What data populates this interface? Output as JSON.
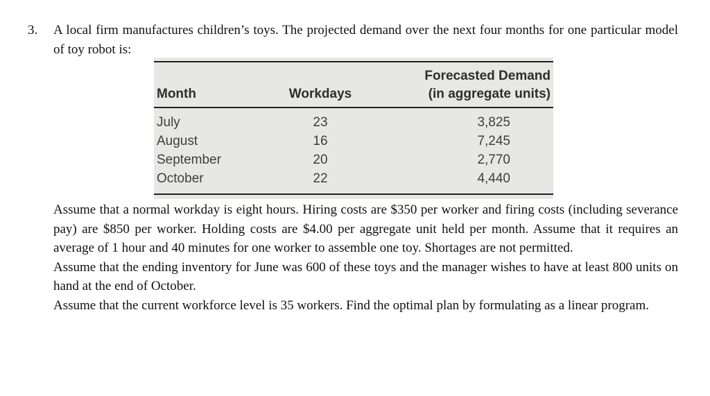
{
  "problem": {
    "number": "3.",
    "statement": "A local firm manufactures children’s toys. The projected demand over the next four months for one particular model of toy robot is:"
  },
  "table": {
    "header": {
      "month": "Month",
      "workdays": "Workdays",
      "demand_line1": "Forecasted Demand",
      "demand_line2": "(in aggregate units)"
    },
    "rows": [
      {
        "month": "July",
        "workdays": "23",
        "demand": "3,825"
      },
      {
        "month": "August",
        "workdays": "16",
        "demand": "7,245"
      },
      {
        "month": "September",
        "workdays": "20",
        "demand": "2,770"
      },
      {
        "month": "October",
        "workdays": "22",
        "demand": "4,440"
      }
    ],
    "colors": {
      "background": "#e7e7e5",
      "rule": "#1f1f1f",
      "header_text": "#2e2e2e",
      "body_text": "#3e3e3e"
    }
  },
  "paragraphs": [
    "Assume that a normal workday is eight hours. Hiring costs are $350 per worker and firing costs (including severance pay) are $850 per worker. Holding costs are $4.00 per aggregate unit held per month. Assume that it requires an average of 1 hour and 40 minutes for one worker to assemble one toy. Shortages are not permitted.",
    "Assume that the ending inventory for June was 600 of these toys and the manager wishes to have at least 800 units on hand at the end of October.",
    "Assume that the current workforce level is 35 workers. Find the optimal plan by formulating as a linear program."
  ]
}
